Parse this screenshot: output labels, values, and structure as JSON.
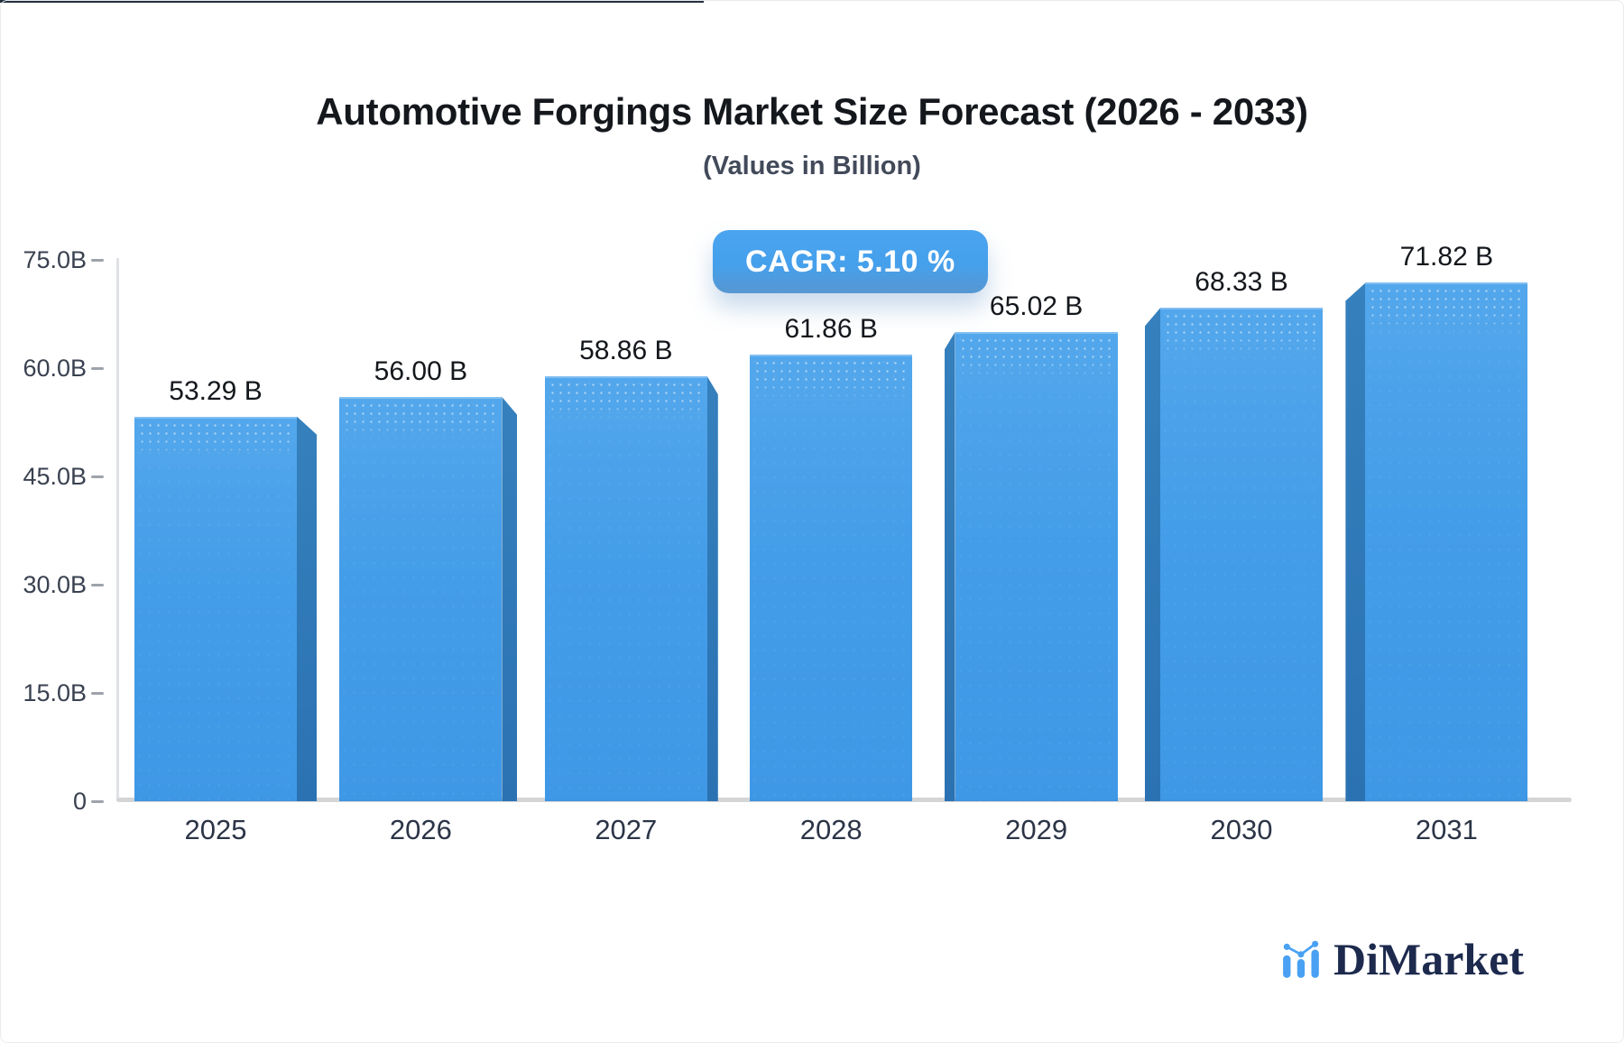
{
  "header": {
    "title": "Automotive Forgings Market Size Forecast (2026 - 2033)",
    "subtitle": "(Values in Billion)",
    "cagr_label": "CAGR: 5.10 %"
  },
  "chart_data": {
    "type": "bar",
    "title": "Automotive Forgings Market Size Forecast (2026 - 2033)",
    "subtitle": "(Values in Billion)",
    "cagr": "5.10 %",
    "categories": [
      "2025",
      "2026",
      "2027",
      "2028",
      "2029",
      "2030",
      "2031"
    ],
    "values": [
      53.29,
      56.0,
      58.86,
      61.86,
      65.02,
      68.33,
      71.82
    ],
    "value_labels": [
      "53.29 B",
      "56.00 B",
      "58.86 B",
      "61.86 B",
      "65.02 B",
      "68.33 B",
      "71.82 B"
    ],
    "ylim": [
      0,
      75
    ],
    "y_ticks": [
      {
        "label": "75.0B",
        "value": 75
      },
      {
        "label": "60.0B",
        "value": 60
      },
      {
        "label": "45.0B",
        "value": 45
      },
      {
        "label": "30.0B",
        "value": 30
      },
      {
        "label": "15.0B",
        "value": 15
      },
      {
        "label": "0",
        "value": 0
      }
    ],
    "grid": false,
    "legend": false,
    "bar_color": "#459fe8",
    "bar_side_color": "#2e77b6",
    "unit": "Billion"
  },
  "footer": {
    "logo_text": "DiMarket"
  },
  "colors": {
    "badge_blue": "#459fec",
    "logo_navy": "#1d2a4e",
    "logo_blue": "#4aa1f3",
    "axis_gray": "#d4d5d7"
  }
}
